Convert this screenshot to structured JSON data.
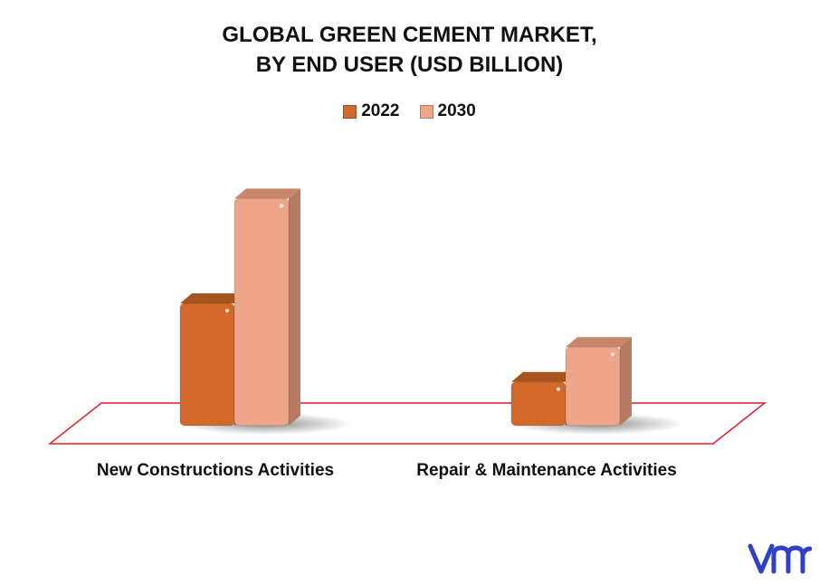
{
  "chart_data": {
    "type": "bar",
    "title_line1": "GLOBAL GREEN CEMENT MARKET,",
    "title_line2": "BY END USER (USD BILLION)",
    "categories": [
      "New Constructions Activities",
      "Repair & Maintenance Activities"
    ],
    "series": [
      {
        "name": "2022",
        "color": "#d2692a",
        "values": [
          14,
          5
        ]
      },
      {
        "name": "2030",
        "color": "#eea58a",
        "values": [
          26,
          9
        ]
      }
    ],
    "ylim": [
      0,
      28
    ],
    "grid": false,
    "legend_position": "top-center"
  },
  "logo": {
    "icon": "vmr-logo-icon",
    "color": "#2f3fc8"
  }
}
